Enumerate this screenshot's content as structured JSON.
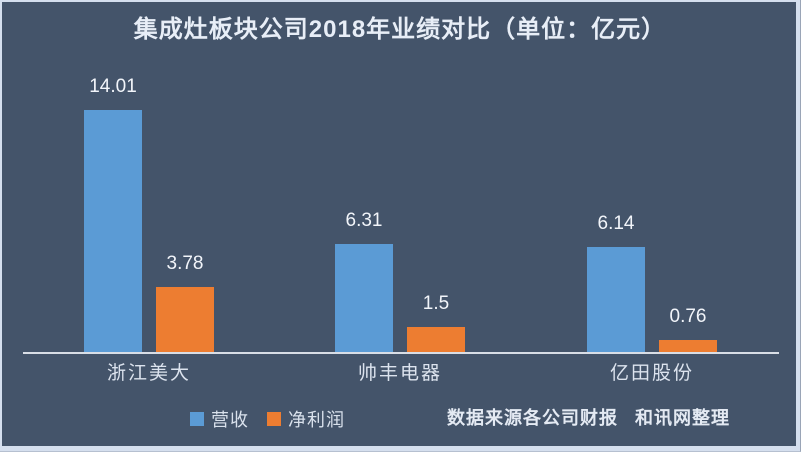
{
  "title": "集成灶板块公司2018年业绩对比（单位：亿元）",
  "chart_data": {
    "type": "bar",
    "categories": [
      "浙江美大",
      "帅丰电器",
      "亿田股份"
    ],
    "series": [
      {
        "name": "营收",
        "color": "#5B9BD5",
        "values": [
          14.01,
          6.31,
          6.14
        ],
        "labels": [
          "14.01",
          "6.31",
          "6.14"
        ]
      },
      {
        "name": "净利润",
        "color": "#ED7D31",
        "values": [
          3.78,
          1.5,
          0.76
        ],
        "labels": [
          "3.78",
          "1.5",
          "0.76"
        ]
      }
    ],
    "title": "集成灶板块公司2018年业绩对比（单位：亿元）",
    "xlabel": "",
    "ylabel": "",
    "ylim": [
      0,
      14.5
    ],
    "grid": false,
    "legend_position": "bottom",
    "value_labels_shown": true
  },
  "legend": {
    "items": [
      {
        "label": "营收",
        "color": "#5B9BD5"
      },
      {
        "label": "净利润",
        "color": "#ED7D31"
      }
    ]
  },
  "footer": {
    "source": "数据来源各公司财报",
    "credit": "和讯网整理"
  },
  "colors": {
    "background": "#44546A",
    "frame": "#D5DFEE",
    "axis": "#D9DEE6",
    "title_text": "#E8EEF7",
    "series_revenue": "#5B9BD5",
    "series_net_profit": "#ED7D31"
  }
}
